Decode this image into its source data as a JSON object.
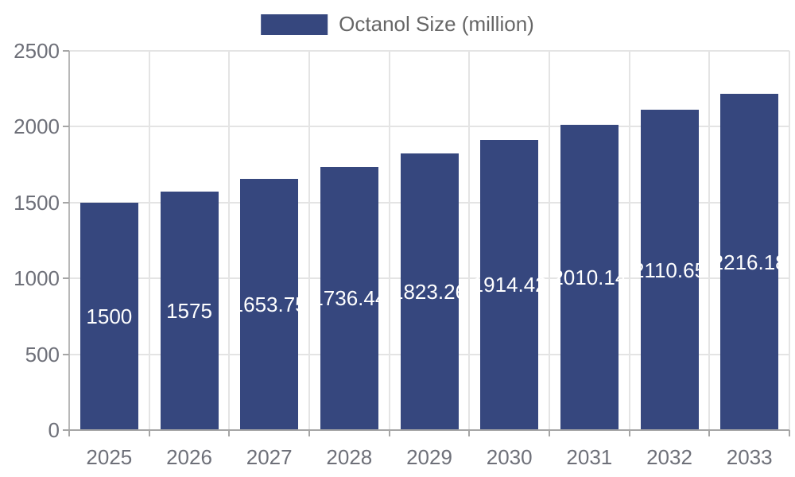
{
  "chart_data": {
    "type": "bar",
    "title": "",
    "legend": {
      "label": "Octanol Size (million)",
      "position": "top-center"
    },
    "categories": [
      "2025",
      "2026",
      "2027",
      "2028",
      "2029",
      "2030",
      "2031",
      "2032",
      "2033"
    ],
    "values": [
      1500,
      1575,
      1653.75,
      1736.44,
      1823.26,
      1914.42,
      2010.14,
      2110.65,
      2216.18
    ],
    "value_labels": [
      "1500",
      "1575",
      "1653.75",
      "1736.44",
      "1823.26",
      "1914.42",
      "2010.14",
      "2110.65",
      "2216.18"
    ],
    "xlabel": "",
    "ylabel": "",
    "ylim": [
      0,
      2500
    ],
    "y_ticks": [
      0,
      500,
      1000,
      1500,
      2000,
      2500
    ],
    "grid": true,
    "colors": {
      "bar": "#36477E",
      "value_label": "#FFFFFF",
      "axis_label": "#6E7079",
      "legend_text": "#666666",
      "grid_line": "#E4E4E4",
      "axis_line": "#A6A6A6"
    }
  }
}
